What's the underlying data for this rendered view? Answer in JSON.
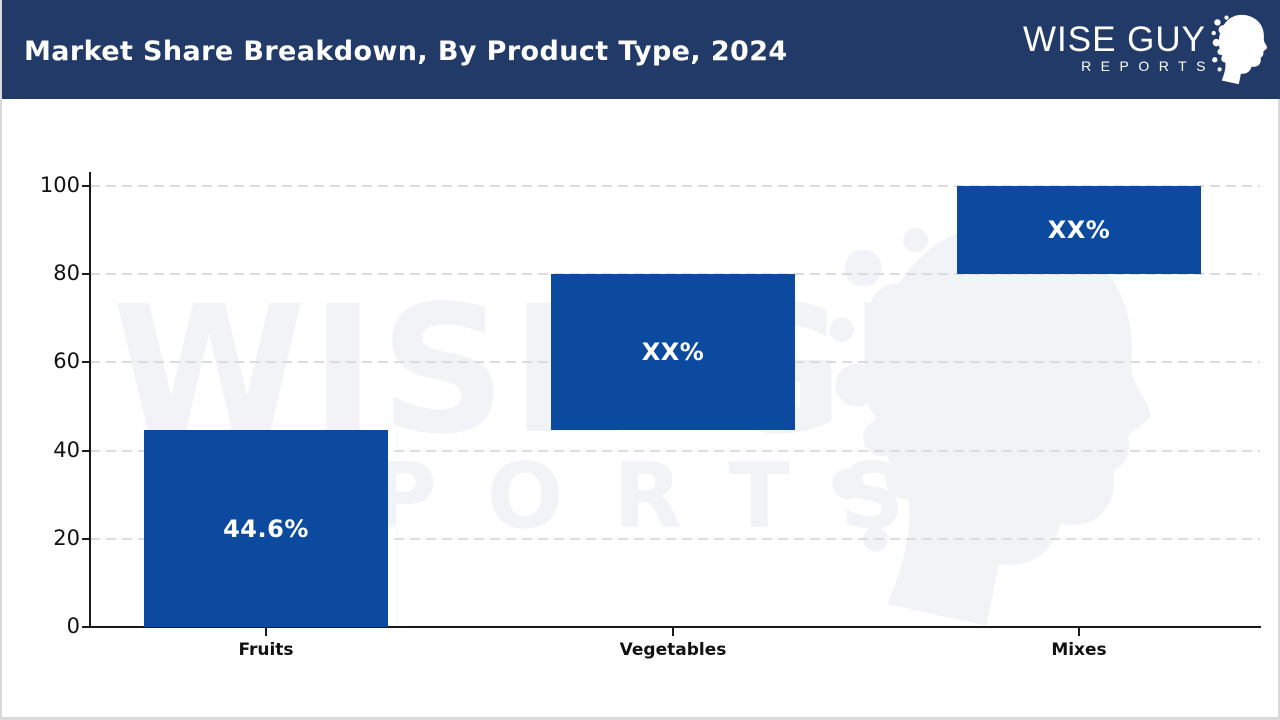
{
  "header": {
    "title": "Market Share Breakdown, By Product Type, 2024",
    "logo": {
      "wise_guy": "WISE GUY",
      "reports": "REPORTS"
    }
  },
  "watermark": {
    "wise_guy": "WISE GUY",
    "reports": "REPORTS"
  },
  "chart_data": {
    "type": "bar",
    "variant": "stacked-waterfall",
    "title": "Market Share Breakdown, By Product Type, 2024",
    "categories": [
      "Fruits",
      "Vegetables",
      "Mixes"
    ],
    "bars": [
      {
        "category": "Fruits",
        "start": 0,
        "end": 44.6,
        "label": "44.6%"
      },
      {
        "category": "Vegetables",
        "start": 44.6,
        "end": 80,
        "label": "XX%"
      },
      {
        "category": "Mixes",
        "start": 80,
        "end": 100,
        "label": "XX%"
      }
    ],
    "implied_segment_values_pct": [
      44.6,
      35.4,
      20.0
    ],
    "xlabel": "",
    "ylabel": "",
    "y_ticks": [
      0,
      20,
      40,
      60,
      80,
      100
    ],
    "ylim": [
      0,
      100
    ],
    "grid": "horizontal-dashed",
    "legend": "none",
    "bar_color": "#0C4AA0",
    "bar_label_color": "#ffffff"
  },
  "colors": {
    "header_bg": "#223A68",
    "bar": "#0C4AA0",
    "watermark": "#F2F3F6",
    "gridline": "#DCDCDC",
    "axis": "#1A1A1A",
    "page_bg": "#FFFFFF"
  }
}
